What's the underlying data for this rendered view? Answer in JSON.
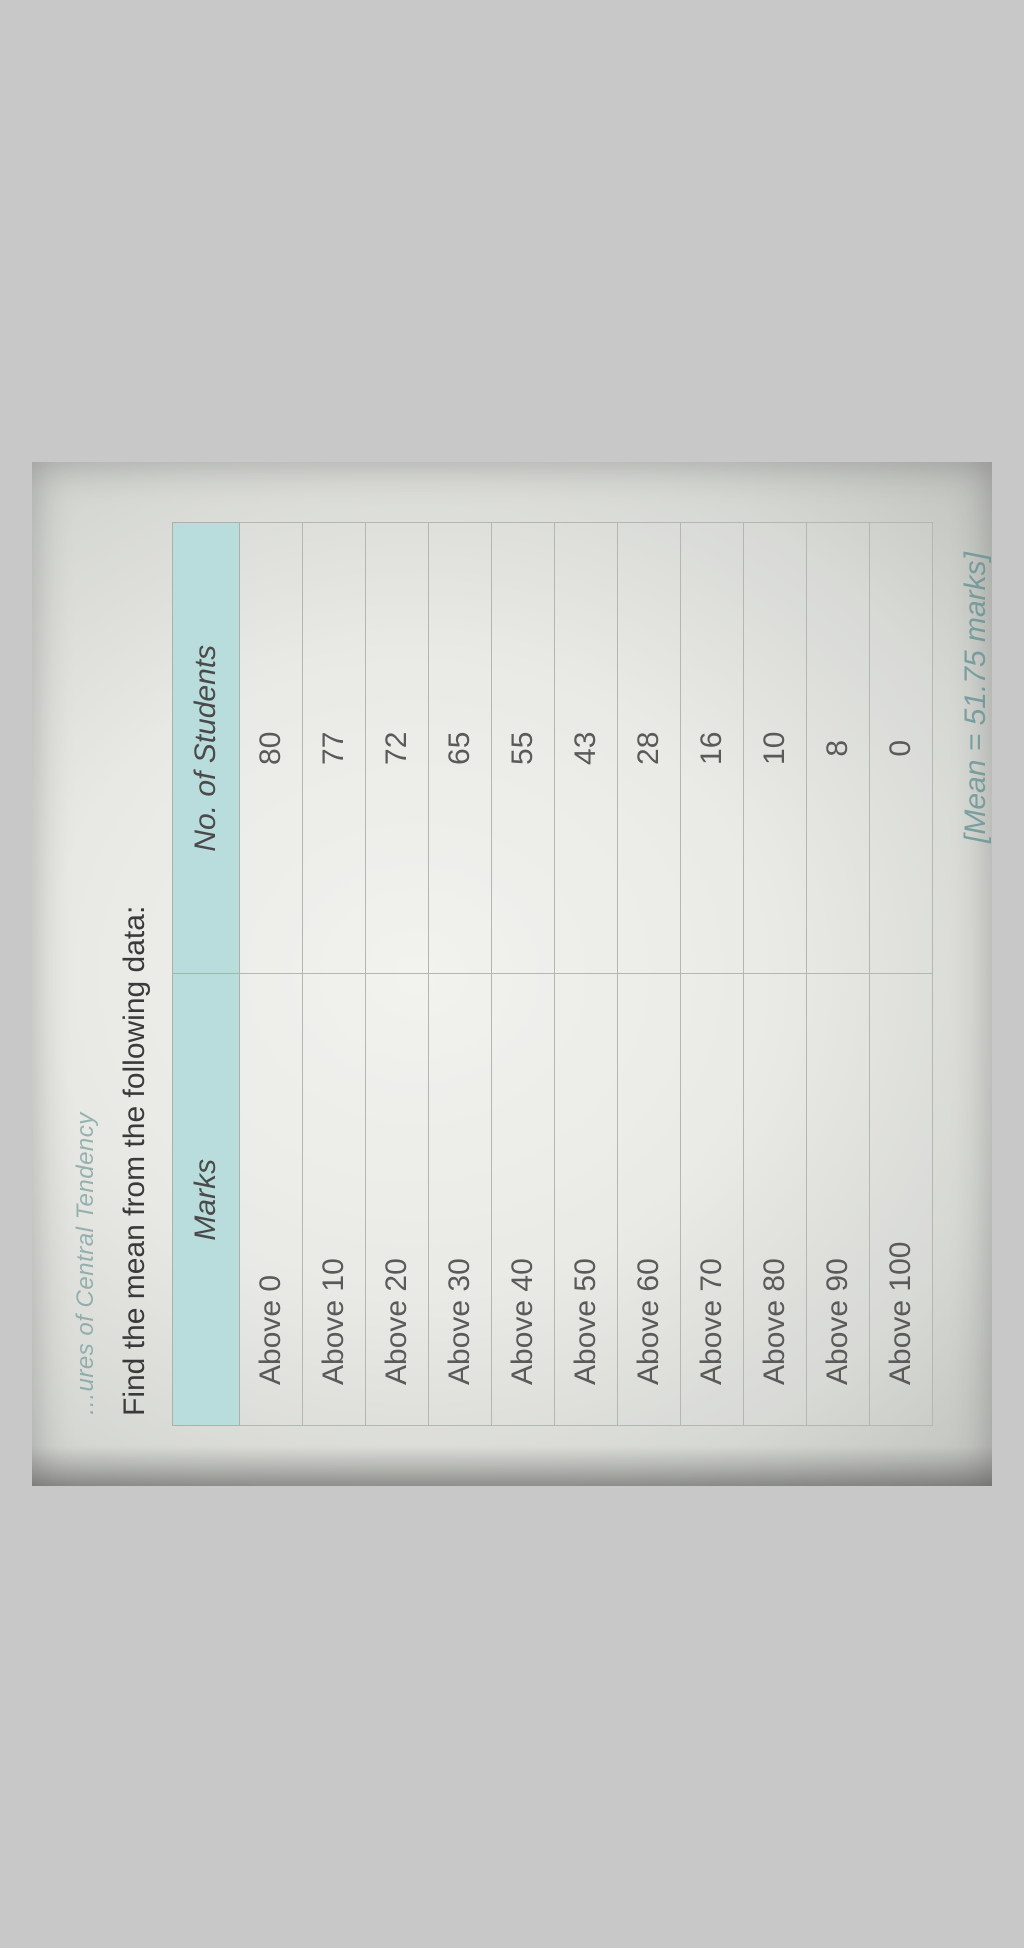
{
  "header_fragment": "…ures of Central Tendency",
  "question_prefix": "Find the mean from the following data:",
  "table": {
    "columns": [
      "Marks",
      "No. of Students"
    ],
    "rows": [
      [
        "Above 0",
        "80"
      ],
      [
        "Above 10",
        "77"
      ],
      [
        "Above 20",
        "72"
      ],
      [
        "Above 30",
        "65"
      ],
      [
        "Above 40",
        "55"
      ],
      [
        "Above 50",
        "43"
      ],
      [
        "Above 60",
        "28"
      ],
      [
        "Above 70",
        "16"
      ],
      [
        "Above 80",
        "10"
      ],
      [
        "Above 90",
        "8"
      ],
      [
        "Above 100",
        "0"
      ]
    ],
    "header_bg": "#b9dcdc",
    "border_color": "#b4b6b2",
    "text_color": "#5a5a5a",
    "fontsize": 30
  },
  "answer": "[Mean = 51.75 marks]",
  "page_bg": "#e8e8e4",
  "accent_color": "#5f8f90"
}
